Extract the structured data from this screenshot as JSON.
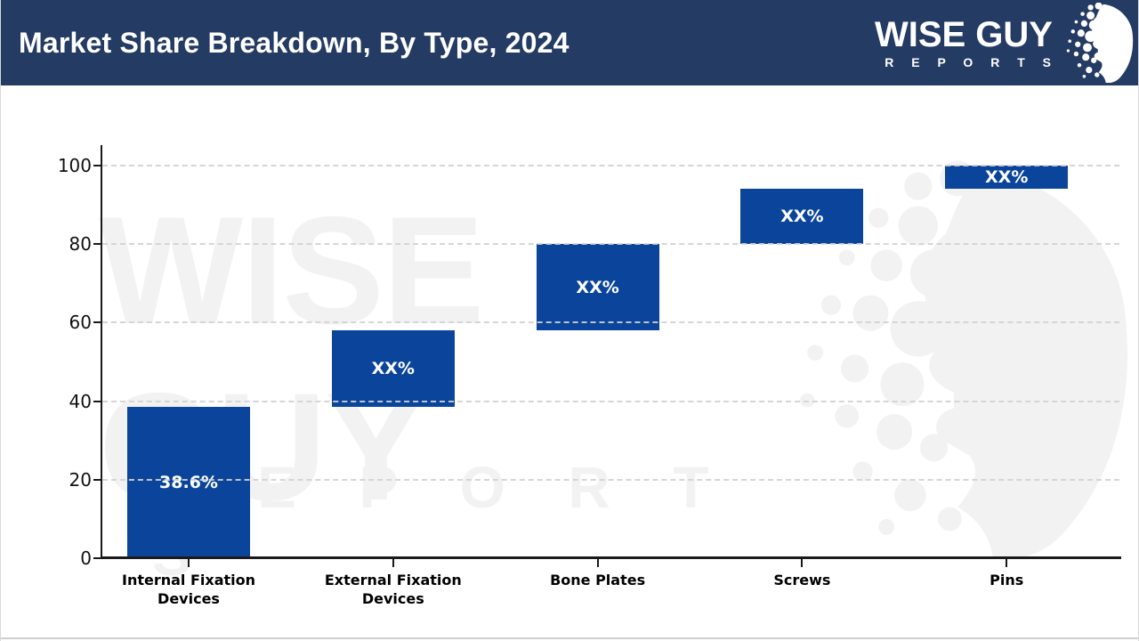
{
  "header": {
    "title": "Market Share Breakdown, By Type, 2024",
    "logo_primary": "WISE GUY",
    "logo_secondary": "R E P O R T S"
  },
  "watermark": {
    "primary": "WISE GUY",
    "secondary": "R E P O R T S"
  },
  "chart_data": {
    "type": "bar",
    "subtype": "waterfall",
    "title": "Market Share Breakdown, By Type, 2024",
    "categories": [
      "Internal Fixation\nDevices",
      "External Fixation\nDevices",
      "Bone Plates",
      "Screws",
      "Pins"
    ],
    "bars": [
      {
        "category": "Internal Fixation Devices",
        "start": 0,
        "end": 38.6,
        "label": "38.6%"
      },
      {
        "category": "External Fixation Devices",
        "start": 38.6,
        "end": 58,
        "label": "XX%"
      },
      {
        "category": "Bone Plates",
        "start": 58,
        "end": 80,
        "label": "XX%"
      },
      {
        "category": "Screws",
        "start": 80,
        "end": 94,
        "label": "XX%"
      },
      {
        "category": "Pins",
        "start": 94,
        "end": 100,
        "label": "XX%"
      }
    ],
    "y_ticks": [
      0,
      20,
      40,
      60,
      80,
      100
    ],
    "ylim": [
      0,
      105
    ],
    "xlabel": "",
    "ylabel": "",
    "grid": "horizontal-dashed",
    "legend": "none"
  },
  "colors": {
    "header_bg": "#243b64",
    "bar_blue": "#0b459b",
    "bar_label": "#ffffff",
    "watermark": "#f2f2f2",
    "axis": "#1a1a1a",
    "grid": "#d2d2d2",
    "border": "#cfcfcf"
  }
}
